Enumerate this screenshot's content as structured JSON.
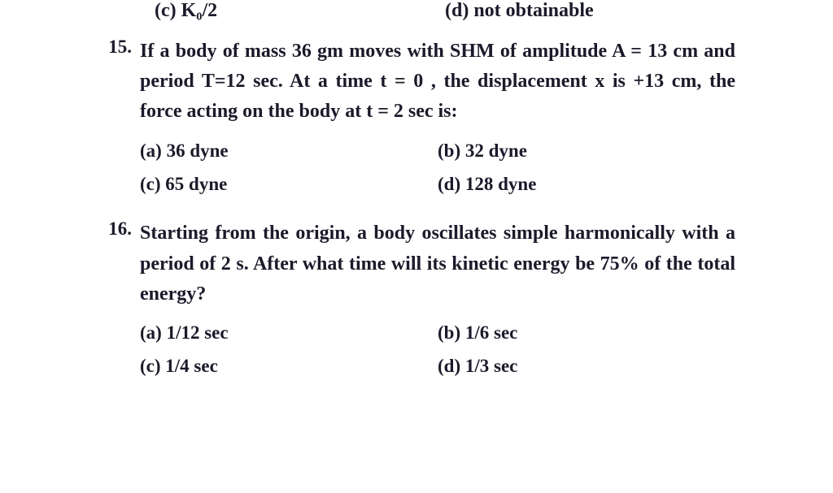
{
  "top_options": {
    "c": "(c) K₀/2",
    "d": "(d) not obtainable"
  },
  "questions": [
    {
      "number": "15.",
      "text": "If a body of mass 36 gm moves with SHM of amplitude A = 13 cm and period T=12 sec. At a time t = 0 , the displacement x is +13 cm,  the force acting on the body at t = 2 sec is:",
      "options": {
        "a": "(a) 36 dyne",
        "b": "(b) 32 dyne",
        "c": "(c) 65 dyne",
        "d": "(d) 128 dyne"
      }
    },
    {
      "number": "16.",
      "text": "Starting from the origin, a body oscillates simple harmonically with a period of 2 s. After what time will its kinetic energy be 75% of the total energy?",
      "options": {
        "a": "(a) 1/12 sec",
        "b": "(b) 1/6 sec",
        "c": "(c) 1/4 sec",
        "d": "(d) 1/3 sec"
      }
    }
  ]
}
